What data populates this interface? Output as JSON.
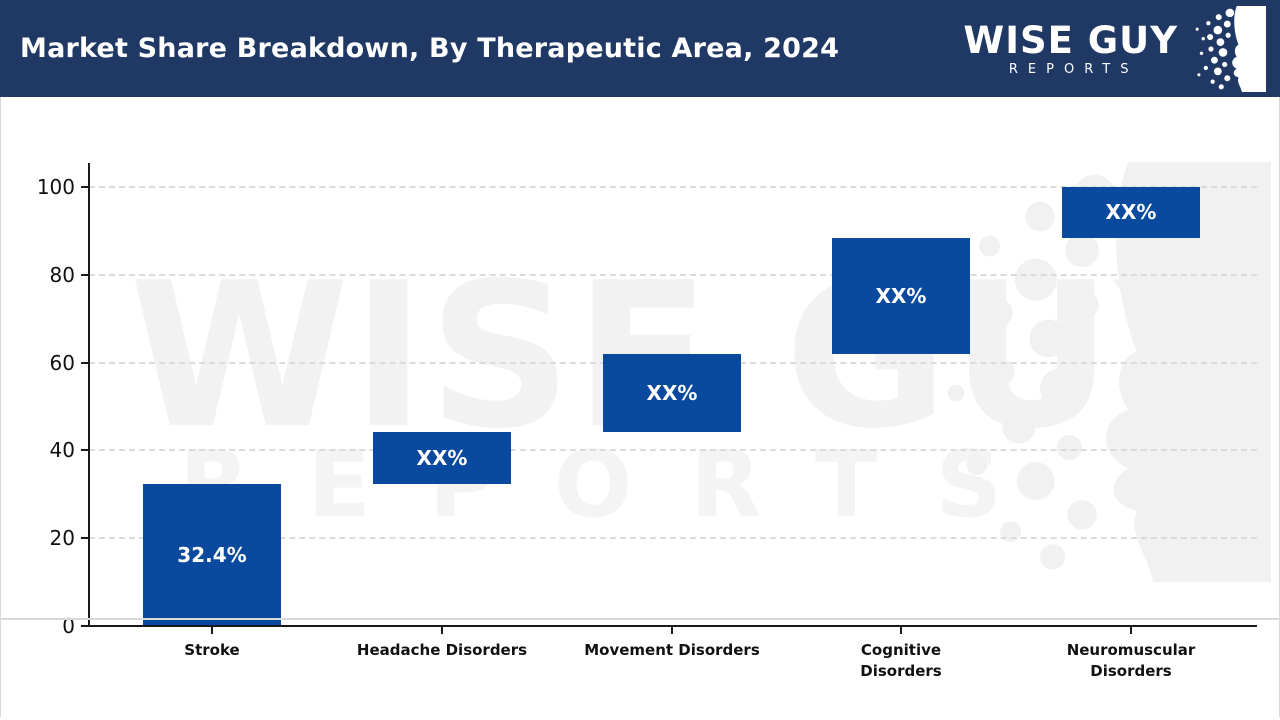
{
  "header": {
    "title": "Market Share Breakdown, By Therapeutic Area, 2024",
    "logo": {
      "line1": "WISE GUY",
      "line2": "REPORTS"
    }
  },
  "watermark": {
    "line1": "WISE GUY",
    "line2": "REPORTS"
  },
  "colors": {
    "header_bg": "#1F3864",
    "bar": "#0A4A9E",
    "grid": "#dbdbdb",
    "axis": "#1a1a1a",
    "bar_label": "#ffffff",
    "watermark": "#f2f2f2"
  },
  "chart_data": {
    "type": "bar",
    "subtype": "waterfall",
    "title": "Market Share Breakdown, By Therapeutic Area, 2024",
    "xlabel": "",
    "ylabel": "",
    "ylim": [
      0,
      105
    ],
    "yticks": [
      0,
      20,
      40,
      60,
      80,
      100
    ],
    "grid": "horizontal-dashed",
    "legend": "none",
    "categories": [
      "Stroke",
      "Headache Disorders",
      "Movement Disorders",
      "Cognitive\nDisorders",
      "Neuromuscular\nDisorders"
    ],
    "segments": [
      {
        "category": "Stroke",
        "start": 0,
        "end": 32.4,
        "value": 32.4,
        "label": "32.4%"
      },
      {
        "category": "Headache Disorders",
        "start": 32.4,
        "end": 44.2,
        "value": 11.8,
        "label": "XX%"
      },
      {
        "category": "Movement Disorders",
        "start": 44.2,
        "end": 61.9,
        "value": 17.7,
        "label": "XX%"
      },
      {
        "category": "Cognitive Disorders",
        "start": 61.9,
        "end": 88.4,
        "value": 26.5,
        "label": "XX%"
      },
      {
        "category": "Neuromuscular Disorders",
        "start": 88.4,
        "end": 100,
        "value": 11.6,
        "label": "XX%"
      }
    ]
  }
}
